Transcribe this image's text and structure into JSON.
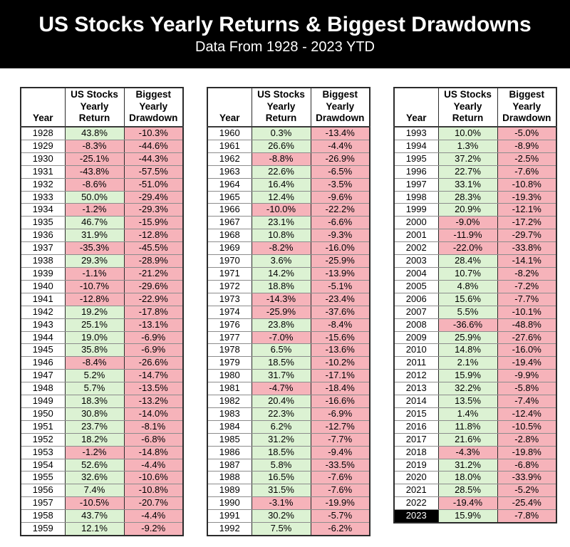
{
  "chart_data": {
    "type": "table",
    "title": "US Stocks Yearly Returns & Biggest Drawdowns",
    "subtitle": "Data From 1928 - 2023 YTD",
    "column_headers": [
      "Year",
      "US Stocks\nYearly\nReturn",
      "Biggest\nYearly\nDrawdown"
    ],
    "colors": {
      "banner_background": "#000000",
      "banner_text": "#ffffff",
      "positive_cell": "#dcf2d3",
      "negative_cell": "#f6b3ba",
      "highlight_year_background": "#000000",
      "highlight_year_text": "#ffffff"
    },
    "highlighted_year": "2023",
    "tables": [
      {
        "name": "1928-1959",
        "rows": [
          [
            "1928",
            "43.8%",
            "-10.3%"
          ],
          [
            "1929",
            "-8.3%",
            "-44.6%"
          ],
          [
            "1930",
            "-25.1%",
            "-44.3%"
          ],
          [
            "1931",
            "-43.8%",
            "-57.5%"
          ],
          [
            "1932",
            "-8.6%",
            "-51.0%"
          ],
          [
            "1933",
            "50.0%",
            "-29.4%"
          ],
          [
            "1934",
            "-1.2%",
            "-29.3%"
          ],
          [
            "1935",
            "46.7%",
            "-15.9%"
          ],
          [
            "1936",
            "31.9%",
            "-12.8%"
          ],
          [
            "1937",
            "-35.3%",
            "-45.5%"
          ],
          [
            "1938",
            "29.3%",
            "-28.9%"
          ],
          [
            "1939",
            "-1.1%",
            "-21.2%"
          ],
          [
            "1940",
            "-10.7%",
            "-29.6%"
          ],
          [
            "1941",
            "-12.8%",
            "-22.9%"
          ],
          [
            "1942",
            "19.2%",
            "-17.8%"
          ],
          [
            "1943",
            "25.1%",
            "-13.1%"
          ],
          [
            "1944",
            "19.0%",
            "-6.9%"
          ],
          [
            "1945",
            "35.8%",
            "-6.9%"
          ],
          [
            "1946",
            "-8.4%",
            "-26.6%"
          ],
          [
            "1947",
            "5.2%",
            "-14.7%"
          ],
          [
            "1948",
            "5.7%",
            "-13.5%"
          ],
          [
            "1949",
            "18.3%",
            "-13.2%"
          ],
          [
            "1950",
            "30.8%",
            "-14.0%"
          ],
          [
            "1951",
            "23.7%",
            "-8.1%"
          ],
          [
            "1952",
            "18.2%",
            "-6.8%"
          ],
          [
            "1953",
            "-1.2%",
            "-14.8%"
          ],
          [
            "1954",
            "52.6%",
            "-4.4%"
          ],
          [
            "1955",
            "32.6%",
            "-10.6%"
          ],
          [
            "1956",
            "7.4%",
            "-10.8%"
          ],
          [
            "1957",
            "-10.5%",
            "-20.7%"
          ],
          [
            "1958",
            "43.7%",
            "-4.4%"
          ],
          [
            "1959",
            "12.1%",
            "-9.2%"
          ]
        ]
      },
      {
        "name": "1960-1992",
        "rows": [
          [
            "1960",
            "0.3%",
            "-13.4%"
          ],
          [
            "1961",
            "26.6%",
            "-4.4%"
          ],
          [
            "1962",
            "-8.8%",
            "-26.9%"
          ],
          [
            "1963",
            "22.6%",
            "-6.5%"
          ],
          [
            "1964",
            "16.4%",
            "-3.5%"
          ],
          [
            "1965",
            "12.4%",
            "-9.6%"
          ],
          [
            "1966",
            "-10.0%",
            "-22.2%"
          ],
          [
            "1967",
            "23.1%",
            "-6.6%"
          ],
          [
            "1968",
            "10.8%",
            "-9.3%"
          ],
          [
            "1969",
            "-8.2%",
            "-16.0%"
          ],
          [
            "1970",
            "3.6%",
            "-25.9%"
          ],
          [
            "1971",
            "14.2%",
            "-13.9%"
          ],
          [
            "1972",
            "18.8%",
            "-5.1%"
          ],
          [
            "1973",
            "-14.3%",
            "-23.4%"
          ],
          [
            "1974",
            "-25.9%",
            "-37.6%"
          ],
          [
            "1976",
            "23.8%",
            "-8.4%"
          ],
          [
            "1977",
            "-7.0%",
            "-15.6%"
          ],
          [
            "1978",
            "6.5%",
            "-13.6%"
          ],
          [
            "1979",
            "18.5%",
            "-10.2%"
          ],
          [
            "1980",
            "31.7%",
            "-17.1%"
          ],
          [
            "1981",
            "-4.7%",
            "-18.4%"
          ],
          [
            "1982",
            "20.4%",
            "-16.6%"
          ],
          [
            "1983",
            "22.3%",
            "-6.9%"
          ],
          [
            "1984",
            "6.2%",
            "-12.7%"
          ],
          [
            "1985",
            "31.2%",
            "-7.7%"
          ],
          [
            "1986",
            "18.5%",
            "-9.4%"
          ],
          [
            "1987",
            "5.8%",
            "-33.5%"
          ],
          [
            "1988",
            "16.5%",
            "-7.6%"
          ],
          [
            "1989",
            "31.5%",
            "-7.6%"
          ],
          [
            "1990",
            "-3.1%",
            "-19.9%"
          ],
          [
            "1991",
            "30.2%",
            "-5.7%"
          ],
          [
            "1992",
            "7.5%",
            "-6.2%"
          ]
        ]
      },
      {
        "name": "1993-2023",
        "rows": [
          [
            "1993",
            "10.0%",
            "-5.0%"
          ],
          [
            "1994",
            "1.3%",
            "-8.9%"
          ],
          [
            "1995",
            "37.2%",
            "-2.5%"
          ],
          [
            "1996",
            "22.7%",
            "-7.6%"
          ],
          [
            "1997",
            "33.1%",
            "-10.8%"
          ],
          [
            "1998",
            "28.3%",
            "-19.3%"
          ],
          [
            "1999",
            "20.9%",
            "-12.1%"
          ],
          [
            "2000",
            "-9.0%",
            "-17.2%"
          ],
          [
            "2001",
            "-11.9%",
            "-29.7%"
          ],
          [
            "2002",
            "-22.0%",
            "-33.8%"
          ],
          [
            "2003",
            "28.4%",
            "-14.1%"
          ],
          [
            "2004",
            "10.7%",
            "-8.2%"
          ],
          [
            "2005",
            "4.8%",
            "-7.2%"
          ],
          [
            "2006",
            "15.6%",
            "-7.7%"
          ],
          [
            "2007",
            "5.5%",
            "-10.1%"
          ],
          [
            "2008",
            "-36.6%",
            "-48.8%"
          ],
          [
            "2009",
            "25.9%",
            "-27.6%"
          ],
          [
            "2010",
            "14.8%",
            "-16.0%"
          ],
          [
            "2011",
            "2.1%",
            "-19.4%"
          ],
          [
            "2012",
            "15.9%",
            "-9.9%"
          ],
          [
            "2013",
            "32.2%",
            "-5.8%"
          ],
          [
            "2014",
            "13.5%",
            "-7.4%"
          ],
          [
            "2015",
            "1.4%",
            "-12.4%"
          ],
          [
            "2016",
            "11.8%",
            "-10.5%"
          ],
          [
            "2017",
            "21.6%",
            "-2.8%"
          ],
          [
            "2018",
            "-4.3%",
            "-19.8%"
          ],
          [
            "2019",
            "31.2%",
            "-6.8%"
          ],
          [
            "2020",
            "18.0%",
            "-33.9%"
          ],
          [
            "2021",
            "28.5%",
            "-5.2%"
          ],
          [
            "2022",
            "-19.4%",
            "-25.4%"
          ],
          [
            "2023",
            "15.9%",
            "-7.8%"
          ]
        ]
      }
    ]
  }
}
